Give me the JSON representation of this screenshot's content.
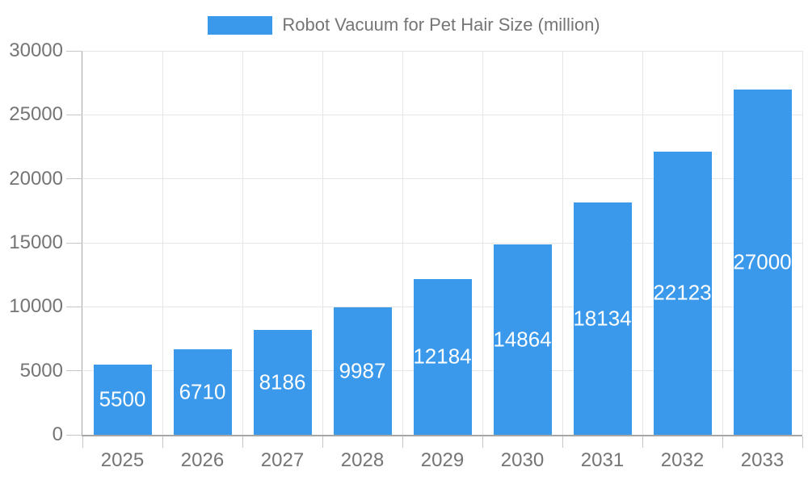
{
  "legend": {
    "label": "Robot Vacuum for Pet Hair Size (million)"
  },
  "chart_data": {
    "type": "bar",
    "title": "Robot Vacuum for Pet Hair Size (million)",
    "categories": [
      "2025",
      "2026",
      "2027",
      "2028",
      "2029",
      "2030",
      "2031",
      "2032",
      "2033"
    ],
    "values": [
      5500,
      6710,
      8186,
      9987,
      12184,
      14864,
      18134,
      22123,
      27000
    ],
    "xlabel": "",
    "ylabel": "",
    "ylim": [
      0,
      30000
    ],
    "ytick_step": 5000,
    "ytick_labels": [
      "0",
      "5000",
      "10000",
      "15000",
      "20000",
      "25000",
      "30000"
    ],
    "grid": true,
    "legend_position": "top-center",
    "value_labels": "inside-center-white",
    "colors": {
      "bar": "#3b99ec",
      "bar_label_text": "#ffffff",
      "axis_text": "#757575",
      "gridline": "#e6e6e6",
      "axis_line": "#a6a6a6",
      "tick_line": "#c6c6c6",
      "background": "#ffffff"
    }
  }
}
